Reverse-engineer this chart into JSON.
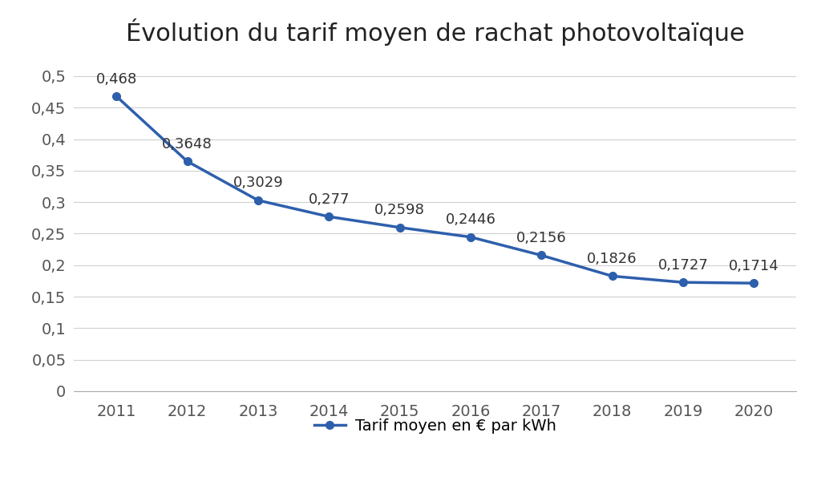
{
  "title": "Évolution du tarif moyen de rachat photovoltaïque",
  "years": [
    2011,
    2012,
    2013,
    2014,
    2015,
    2016,
    2017,
    2018,
    2019,
    2020
  ],
  "values": [
    0.468,
    0.3648,
    0.3029,
    0.277,
    0.2598,
    0.2446,
    0.2156,
    0.1826,
    0.1727,
    0.1714
  ],
  "labels": [
    "0,468",
    "0,3648",
    "0,3029",
    "0,277",
    "0,2598",
    "0,2446",
    "0,2156",
    "0,1826",
    "0,1727",
    "0,1714"
  ],
  "line_color": "#2E5FAC",
  "marker_color": "#2E5FAC",
  "background_color": "#FFFFFF",
  "legend_label": "Tarif moyen en € par kWh",
  "yticks": [
    0,
    0.05,
    0.1,
    0.15,
    0.2,
    0.25,
    0.3,
    0.35,
    0.4,
    0.45,
    0.5
  ],
  "ytick_labels": [
    "0",
    "0,05",
    "0,1",
    "0,15",
    "0,2",
    "0,25",
    "0,3",
    "0,35",
    "0,4",
    "0,45",
    "0,5"
  ],
  "ylim": [
    0,
    0.53
  ],
  "title_fontsize": 22,
  "tick_fontsize": 14,
  "label_fontsize": 13,
  "legend_fontsize": 14,
  "grid_color": "#D0D0D0",
  "spine_color": "#AAAAAA"
}
